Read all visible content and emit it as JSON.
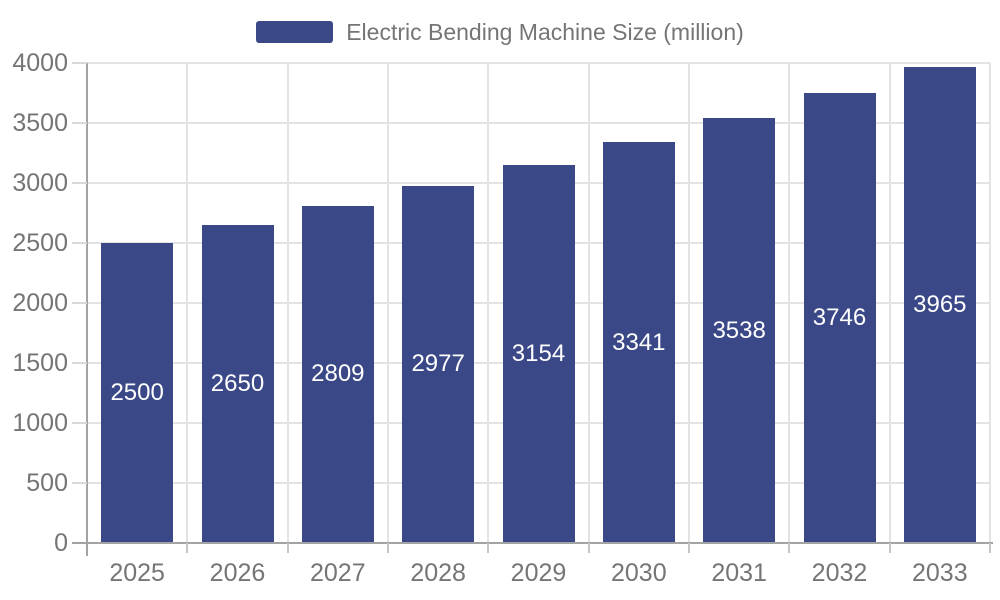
{
  "chart_data": {
    "type": "bar",
    "title": "",
    "legend": "Electric Bending Machine Size (million)",
    "categories": [
      "2025",
      "2026",
      "2027",
      "2028",
      "2029",
      "2030",
      "2031",
      "2032",
      "2033"
    ],
    "values": [
      2500,
      2650,
      2809,
      2977,
      3154,
      3341,
      3538,
      3746,
      3965
    ],
    "xlabel": "",
    "ylabel": "",
    "ylim": [
      0,
      4000
    ],
    "ytick_step": 500,
    "yticks": [
      0,
      500,
      1000,
      1500,
      2000,
      2500,
      3000,
      3500,
      4000
    ],
    "grid": true,
    "legend_position": "top",
    "value_labels_position": "inside-middle",
    "colors": {
      "bar": "#3A4887",
      "value_label": "#FFFFFF",
      "axis_text": "#757575",
      "legend_text": "#757575",
      "gridline": "#E3E3E3",
      "axis_line": "#A3A3A3",
      "background": "#FFFFFF"
    }
  }
}
